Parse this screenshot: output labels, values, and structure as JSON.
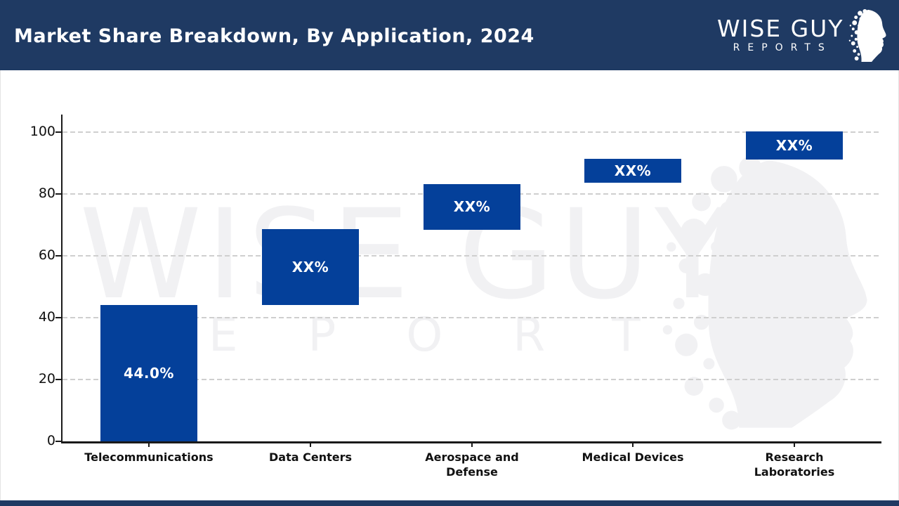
{
  "header": {
    "title": "Market Share Breakdown, By Application, 2024",
    "bg_color": "#1f3a63",
    "logo": {
      "line1": "WISE GUY",
      "line2": "REPORTS"
    }
  },
  "watermark": {
    "line1": "WISE GUY",
    "line2": "REPORTS"
  },
  "chart_data": {
    "type": "bar",
    "subtype": "waterfall",
    "title": "Market Share Breakdown, By Application, 2024",
    "categories": [
      "Telecommunications",
      "Data Centers",
      "Aerospace and\nDefense",
      "Medical Devices",
      "Research\nLaboratories"
    ],
    "segments": [
      {
        "category": "Telecommunications",
        "start": 0,
        "end": 44,
        "label": "44.0%"
      },
      {
        "category": "Data Centers",
        "start": 44,
        "end": 68.6,
        "label": "XX%"
      },
      {
        "category": "Aerospace and Defense",
        "start": 68.5,
        "end": 83.2,
        "label": "XX%"
      },
      {
        "category": "Medical Devices",
        "start": 83.6,
        "end": 91.4,
        "label": "XX%"
      },
      {
        "category": "Research Laboratories",
        "start": 91.2,
        "end": 100.2,
        "label": "XX%"
      }
    ],
    "yticks": [
      0,
      20,
      40,
      60,
      80,
      100
    ],
    "ylim": [
      0,
      106
    ],
    "xlabel": "",
    "ylabel": "",
    "unit": "%",
    "bar_color": "#04409a",
    "label_color": "#ffffff",
    "grid": "dashed-horizontal",
    "gridline_color": "#cfcfcf",
    "legend": "none"
  },
  "footer": {
    "bg_color": "#1f3a63"
  }
}
